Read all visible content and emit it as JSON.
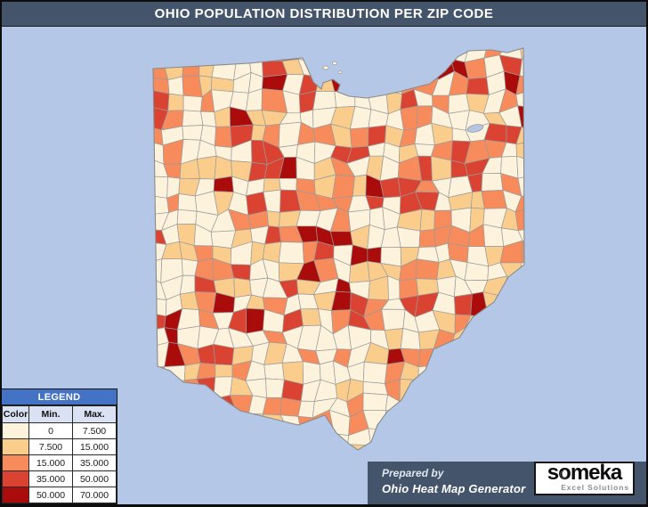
{
  "title": "OHIO POPULATION DISTRIBUTION PER ZIP CODE",
  "legend": {
    "header": "LEGEND",
    "columns": [
      "Color",
      "Min.",
      "Max."
    ],
    "rows": [
      {
        "color": "#FDF2DC",
        "min": "0",
        "max": "7.500"
      },
      {
        "color": "#FACD8D",
        "min": "7.500",
        "max": "15.000"
      },
      {
        "color": "#F88B5B",
        "min": "15.000",
        "max": "35.000"
      },
      {
        "color": "#DA4331",
        "min": "35.000",
        "max": "50.000"
      },
      {
        "color": "#AA0B0B",
        "min": "50.000",
        "max": "70.000"
      }
    ]
  },
  "footer": {
    "prepared_by": "Prepared by",
    "generator": "Ohio Heat Map Generator"
  },
  "logo": {
    "name": "someka",
    "tagline": "Excel Solutions"
  },
  "theme": {
    "titlebar_bg": "#44546A",
    "water": "#B4C7E7",
    "legend_header_bg": "#4472C4",
    "legend_column_bg": "#D9E1F2",
    "footer_bg": "#44546A",
    "zip_border": "#9a9a9a"
  },
  "chart_data": {
    "type": "heatmap",
    "subtype": "choropleth-map",
    "title": "OHIO POPULATION DISTRIBUTION PER ZIP CODE",
    "region": "Ohio",
    "unit": "population per zip code",
    "legend_position": "bottom-left",
    "classes": [
      {
        "min": 0,
        "max": 7500,
        "color": "#FDF2DC"
      },
      {
        "min": 7500,
        "max": 15000,
        "color": "#FACD8D"
      },
      {
        "min": 15000,
        "max": 35000,
        "color": "#F88B5B"
      },
      {
        "min": 35000,
        "max": 50000,
        "color": "#DA4331"
      },
      {
        "min": 50000,
        "max": 70000,
        "color": "#AA0B0B"
      }
    ]
  }
}
